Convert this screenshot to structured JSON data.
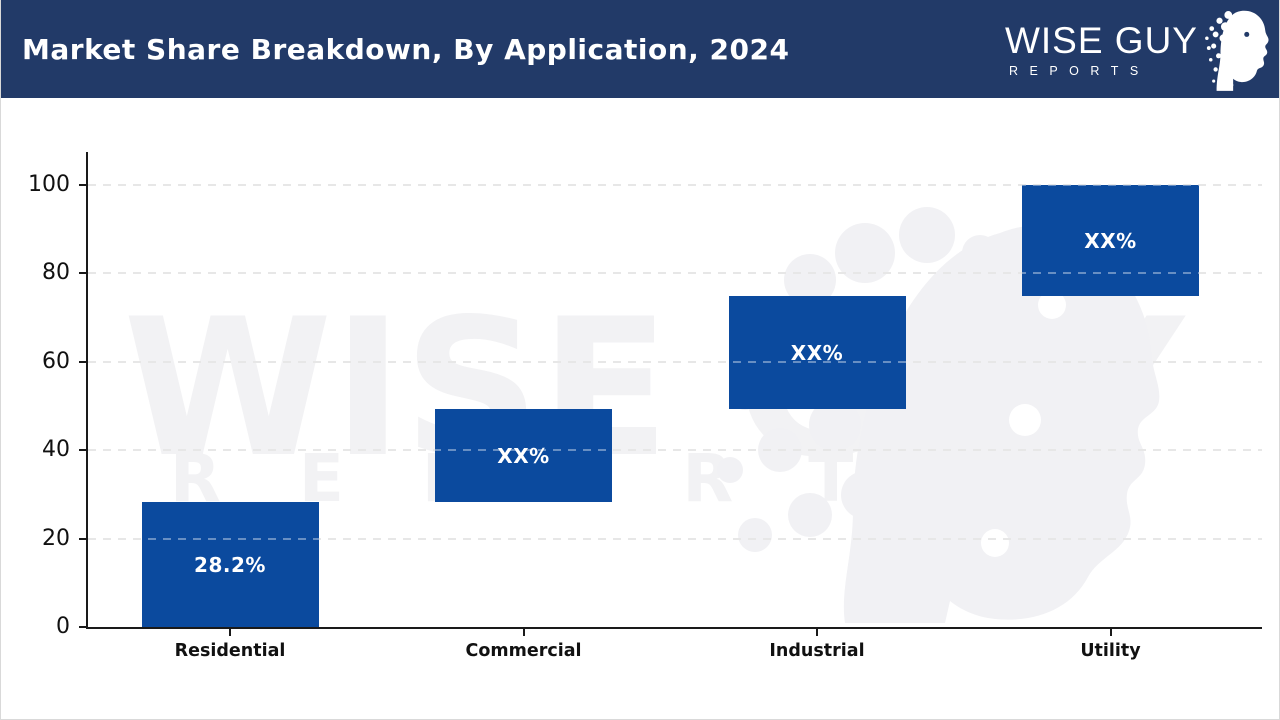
{
  "header": {
    "title": "Market Share Breakdown, By Application, 2024",
    "background_color": "#223a68",
    "logo": {
      "wordmark": "WISE GUY",
      "subtitle": "REPORTS"
    }
  },
  "watermark": {
    "wordmark": "WISE GUY",
    "subtitle": "REPORTS"
  },
  "chart_data": {
    "type": "bar",
    "subtype": "waterfall",
    "title": "Market Share Breakdown, By Application, 2024",
    "categories": [
      "Residential",
      "Commercial",
      "Industrial",
      "Utility"
    ],
    "segments": [
      {
        "category": "Residential",
        "start": 0,
        "end": 28.2,
        "label": "28.2%"
      },
      {
        "category": "Commercial",
        "start": 28.2,
        "end": 49.3,
        "label": "XX%"
      },
      {
        "category": "Industrial",
        "start": 49.3,
        "end": 74.9,
        "label": "XX%"
      },
      {
        "category": "Utility",
        "start": 74.9,
        "end": 100,
        "label": "XX%"
      }
    ],
    "xlabel": "",
    "ylabel": "",
    "ylim": [
      0,
      106.8
    ],
    "yticks": [
      0,
      20,
      40,
      60,
      80,
      100
    ],
    "grid": "horizontal-dashed",
    "legend": "none",
    "bar_color": "#0b4a9e",
    "bar_label_color": "#ffffff",
    "axis_color": "#1a1a1a",
    "gridline_color": "#d8d8d8"
  }
}
